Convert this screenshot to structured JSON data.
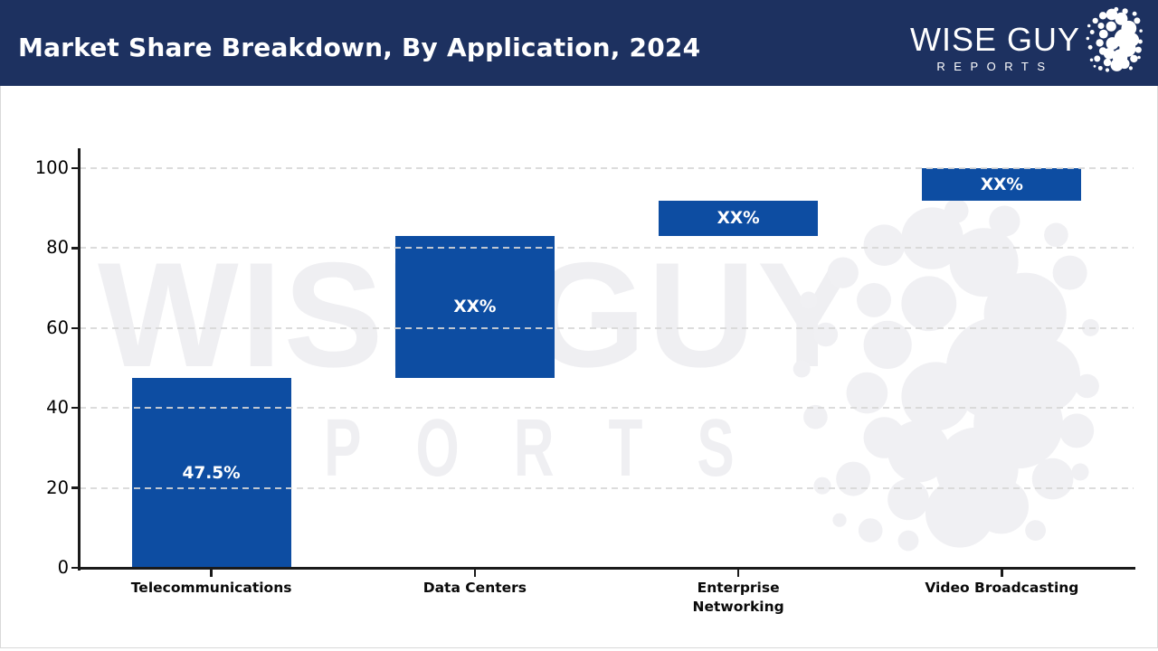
{
  "header": {
    "title": "Market Share Breakdown, By Application, 2024",
    "logo": {
      "line1": "WISE GUY",
      "line2": "REPORTS"
    }
  },
  "watermark": {
    "line1": "WISE GUY",
    "line2": "REPORTS"
  },
  "chart_data": {
    "type": "bar",
    "subtype": "waterfall-floating-bars",
    "title": "Market Share Breakdown, By Application, 2024",
    "categories": [
      "Telecommunications",
      "Data Centers",
      "Enterprise Networking",
      "Video Broadcasting"
    ],
    "categories_lines": [
      [
        "Telecommunications"
      ],
      [
        "Data Centers"
      ],
      [
        "Enterprise",
        "Networking"
      ],
      [
        "Video Broadcasting"
      ]
    ],
    "segments": [
      {
        "category": "Telecommunications",
        "start": 0,
        "end": 47.5,
        "label": "47.5%"
      },
      {
        "category": "Data Centers",
        "start": 47.5,
        "end": 83,
        "label": "XX%"
      },
      {
        "category": "Enterprise Networking",
        "start": 83,
        "end": 91.8,
        "label": "XX%"
      },
      {
        "category": "Video Broadcasting",
        "start": 91.8,
        "end": 100,
        "label": "XX%"
      }
    ],
    "xlabel": "",
    "ylabel": "",
    "ylim": [
      0,
      105
    ],
    "yticks": [
      0,
      20,
      40,
      60,
      80,
      100
    ],
    "grid": "horizontal-dashed-above-bars",
    "legend": "none",
    "colors": {
      "bar": "#0d4da2",
      "bar_label": "#ffffff",
      "header_bg": "#1d3160",
      "grid": "#d7d7d7",
      "axis": "#1a1a1a",
      "watermark": "#efeff2"
    }
  }
}
